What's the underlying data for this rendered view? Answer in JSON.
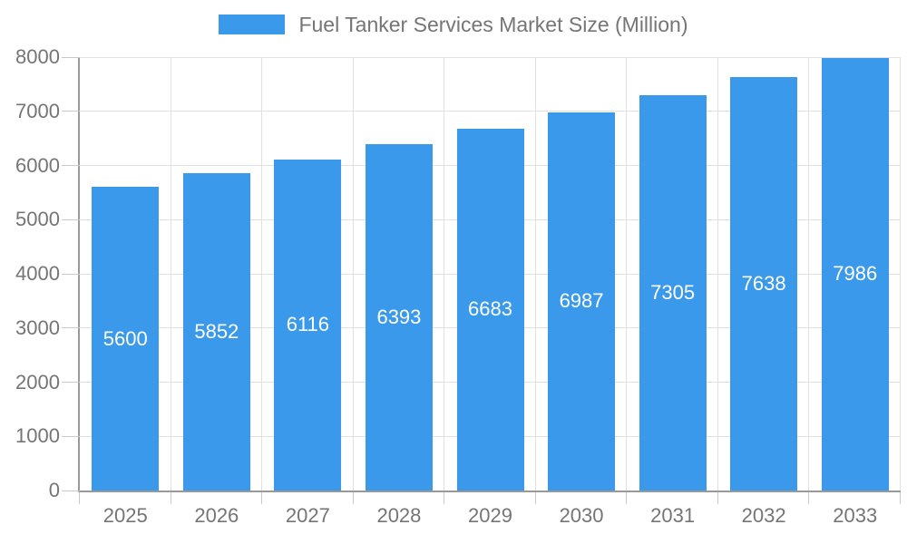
{
  "chart_data": {
    "type": "bar",
    "title": "Fuel Tanker Services Market Size (Million)",
    "categories": [
      "2025",
      "2026",
      "2027",
      "2028",
      "2029",
      "2030",
      "2031",
      "2032",
      "2033"
    ],
    "values": [
      5600,
      5852,
      6116,
      6393,
      6683,
      6987,
      7305,
      7638,
      7986
    ],
    "xlabel": "",
    "ylabel": "",
    "ylim": [
      0,
      8000
    ],
    "ytick_step": 1000,
    "grid": true,
    "legend_position": "top-center",
    "value_labels": "inside-middle"
  },
  "colors": {
    "bar": "#3B99EC",
    "axis_line": "#999999",
    "grid_line": "#E0E0E0",
    "tick_line": "#C9C9C9",
    "axis_text": "#757575",
    "value_text": "#FFFFFF",
    "background": "#FFFFFF"
  }
}
